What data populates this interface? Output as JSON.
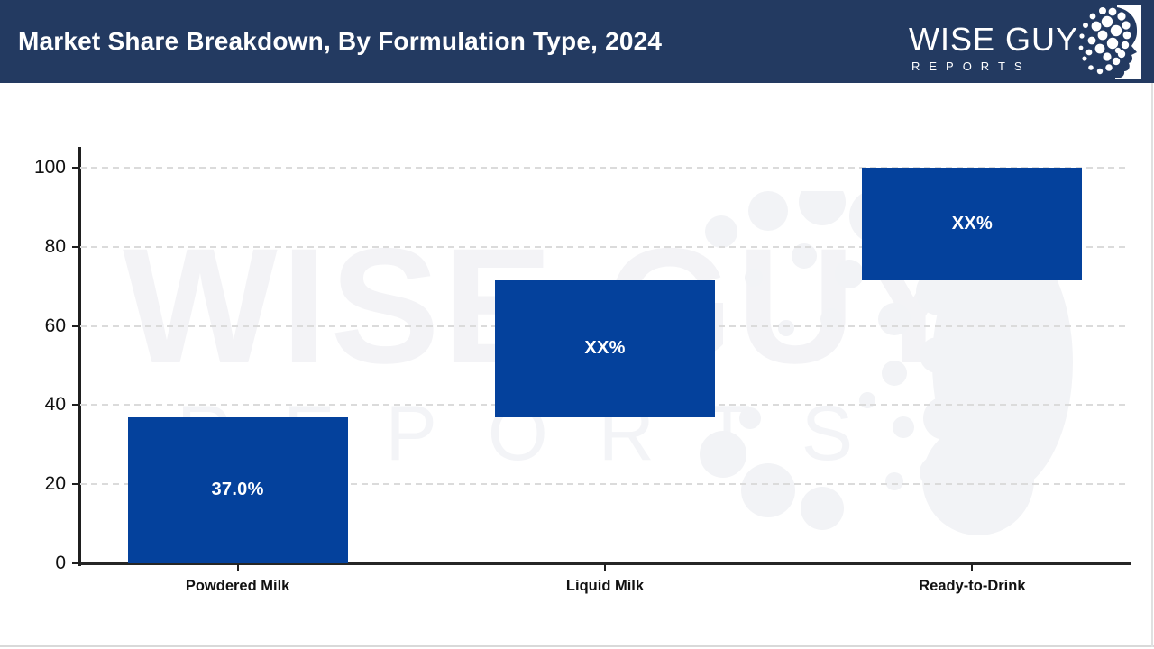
{
  "header": {
    "title": "Market Share Breakdown, By Formulation Type, 2024",
    "logo": {
      "wordmark": "WISE GUY",
      "subtext": "REPORTS"
    }
  },
  "watermark": {
    "wordmark": "WISE GUY",
    "subtext": "REPORTS"
  },
  "colors": {
    "header_bg": "#233A61",
    "bar": "#04419C",
    "gridline": "#DBDBDB",
    "axis": "#1F1F1F",
    "bar_label": "#FFFFFF",
    "watermark": "#F3F3F6"
  },
  "chart_data": {
    "type": "bar",
    "subtype": "floating-segment-waterfall",
    "title": "Market Share Breakdown, By Formulation Type, 2024",
    "categories": [
      "Powdered Milk",
      "Liquid Milk",
      "Ready-to-Drink"
    ],
    "segments": [
      {
        "category": "Powdered Milk",
        "start": 0,
        "end": 37.0,
        "label": "37.0%"
      },
      {
        "category": "Liquid Milk",
        "start": 37.0,
        "end": 71.6,
        "label": "XX%"
      },
      {
        "category": "Ready-to-Drink",
        "start": 71.6,
        "end": 100,
        "label": "XX%"
      }
    ],
    "ylim": [
      0,
      100
    ],
    "yticks": [
      0,
      20,
      40,
      60,
      80,
      100
    ],
    "grid": "horizontal-dashed",
    "legend": null
  }
}
